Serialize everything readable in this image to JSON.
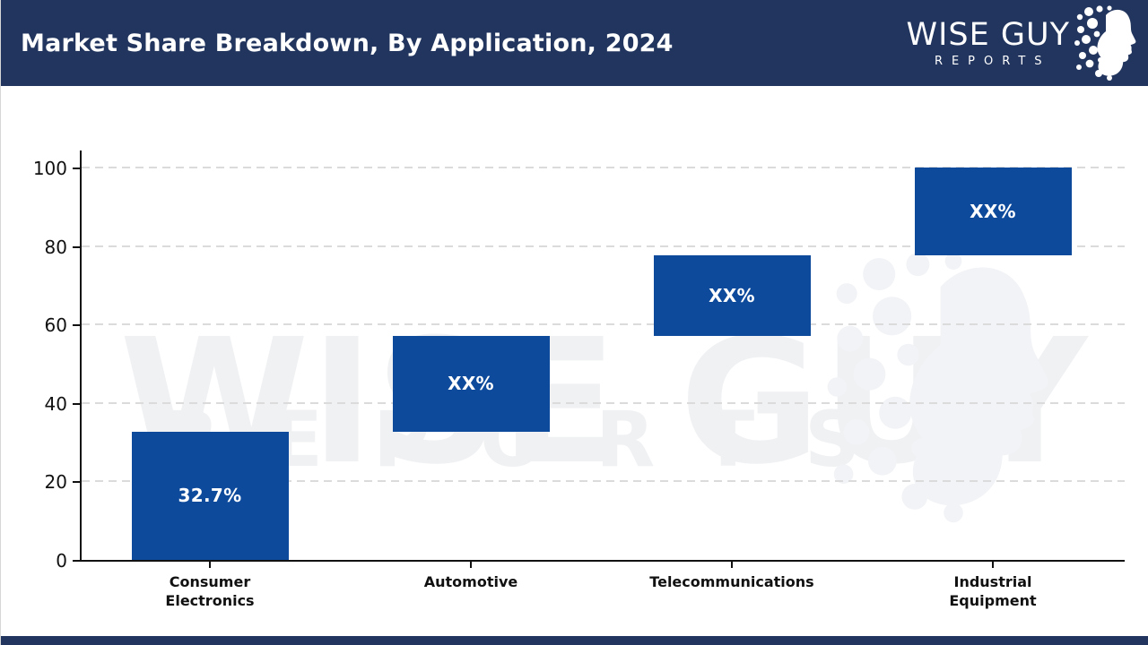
{
  "header": {
    "title": "Market Share Breakdown, By Application, 2024",
    "bg_color": "#22355e",
    "text_color": "#ffffff"
  },
  "logo": {
    "line1": "WISE GUY",
    "line2": "REPORTS"
  },
  "watermark": {
    "line1": "WISE GUY",
    "line2": "REPORTS"
  },
  "footer": {
    "bg_color": "#22355e"
  },
  "chart_data": {
    "type": "bar",
    "subtype": "floating-waterfall",
    "title": "Market Share Breakdown, By Application, 2024",
    "xlabel": "",
    "ylabel": "",
    "ylim": [
      0,
      105
    ],
    "yticks": [
      0,
      20,
      40,
      60,
      80,
      100
    ],
    "grid": "horizontal-dashed",
    "legend": "none",
    "bar_color": "#0d4a9c",
    "grid_color": "#dbdbdb",
    "axis_color": "#111111",
    "categories": [
      "Consumer Electronics",
      "Automotive",
      "Telecommunications",
      "Industrial Equipment"
    ],
    "category_label_lines": [
      [
        "Consumer",
        "Electronics"
      ],
      [
        "Automotive"
      ],
      [
        "Telecommunications"
      ],
      [
        "Industrial",
        "Equipment"
      ]
    ],
    "segments": [
      {
        "category": "Consumer Electronics",
        "start": 0,
        "end": 32.7,
        "label": "32.7%"
      },
      {
        "category": "Automotive",
        "start": 32.7,
        "end": 57.1,
        "label": "XX%"
      },
      {
        "category": "Telecommunications",
        "start": 57.1,
        "end": 77.6,
        "label": "XX%"
      },
      {
        "category": "Industrial Equipment",
        "start": 77.6,
        "end": 100,
        "label": "XX%"
      }
    ]
  }
}
